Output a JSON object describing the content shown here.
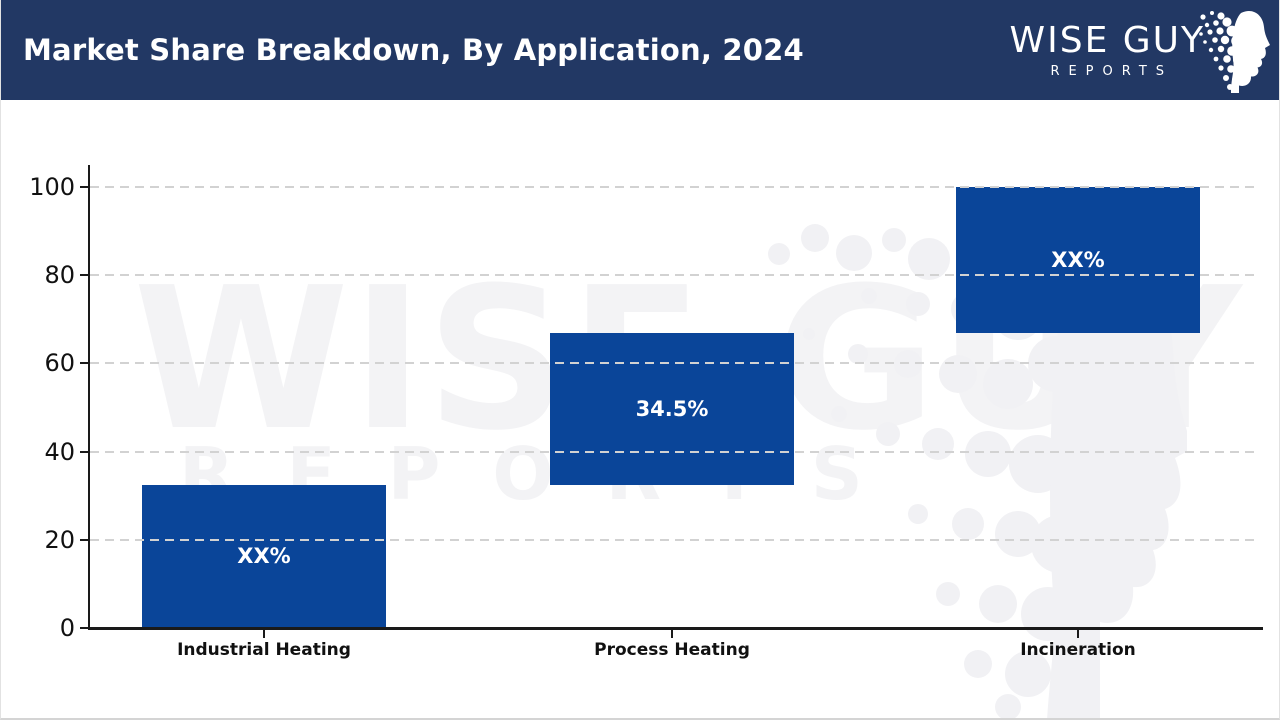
{
  "header": {
    "title": "Market Share Breakdown, By Application, 2024",
    "logo": {
      "line1": "WISE GUY",
      "line2": "REPORTS"
    }
  },
  "watermark": {
    "line1": "WISE GUY",
    "line2": "REPORTS"
  },
  "colors": {
    "header_bg": "#223864",
    "bar": "#0a4599",
    "grid": "#d2d2d2",
    "axis": "#1a1a1a",
    "bar_label": "#ffffff",
    "watermark": "#f3f3f5"
  },
  "chart_data": {
    "type": "bar",
    "subtype": "waterfall",
    "title": "Market Share Breakdown, By Application, 2024",
    "categories": [
      "Industrial Heating",
      "Process Heating",
      "Incineration"
    ],
    "bars": [
      {
        "category": "Industrial Heating",
        "start": 0,
        "end": 32.5,
        "label": "XX%"
      },
      {
        "category": "Process Heating",
        "start": 32.5,
        "end": 67,
        "label": "34.5%"
      },
      {
        "category": "Incineration",
        "start": 67,
        "end": 100,
        "label": "XX%"
      }
    ],
    "ylim": [
      0,
      100
    ],
    "yticks": [
      0,
      20,
      40,
      60,
      80,
      100
    ],
    "xlabel": "",
    "ylabel": "",
    "grid": "horizontal-dashed-above-bars",
    "legend": null
  }
}
